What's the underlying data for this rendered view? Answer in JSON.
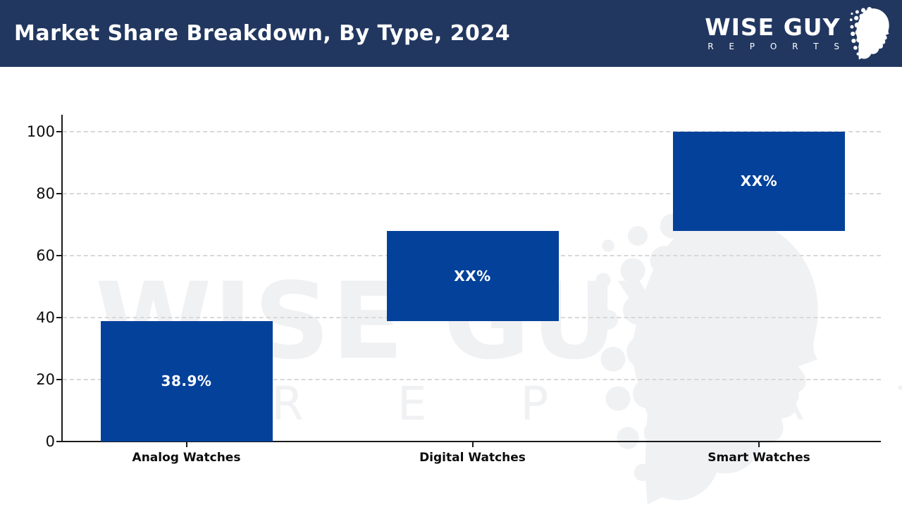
{
  "header": {
    "title": "Market Share Breakdown, By Type, 2024",
    "bg_color": "#213760",
    "logo": {
      "brand_line1": "WISE GUY",
      "brand_line2": "R E P O R T S"
    }
  },
  "watermark": {
    "line1": "WISE GUY",
    "line2": "R E P O R T S"
  },
  "chart_data": {
    "type": "bar",
    "variant": "waterfall",
    "title": "Market Share Breakdown, By Type, 2024",
    "xlabel": "",
    "ylabel": "",
    "categories": [
      "Analog Watches",
      "Digital Watches",
      "Smart Watches"
    ],
    "bars": [
      {
        "category": "Analog Watches",
        "start": 0,
        "end": 38.9,
        "label": "38.9%"
      },
      {
        "category": "Digital Watches",
        "start": 38.9,
        "end": 68,
        "label": "XX%"
      },
      {
        "category": "Smart Watches",
        "start": 68,
        "end": 100,
        "label": "XX%"
      }
    ],
    "values": [
      38.9,
      29.1,
      32.0
    ],
    "yticks": [
      0,
      20,
      40,
      60,
      80,
      100
    ],
    "ylim": [
      0,
      105.5
    ],
    "grid": "horizontal-dashed",
    "legend": "none",
    "bar_color": "#04419b",
    "grid_color": "#d8d8d8",
    "axis_color": "#1a1a1a"
  }
}
